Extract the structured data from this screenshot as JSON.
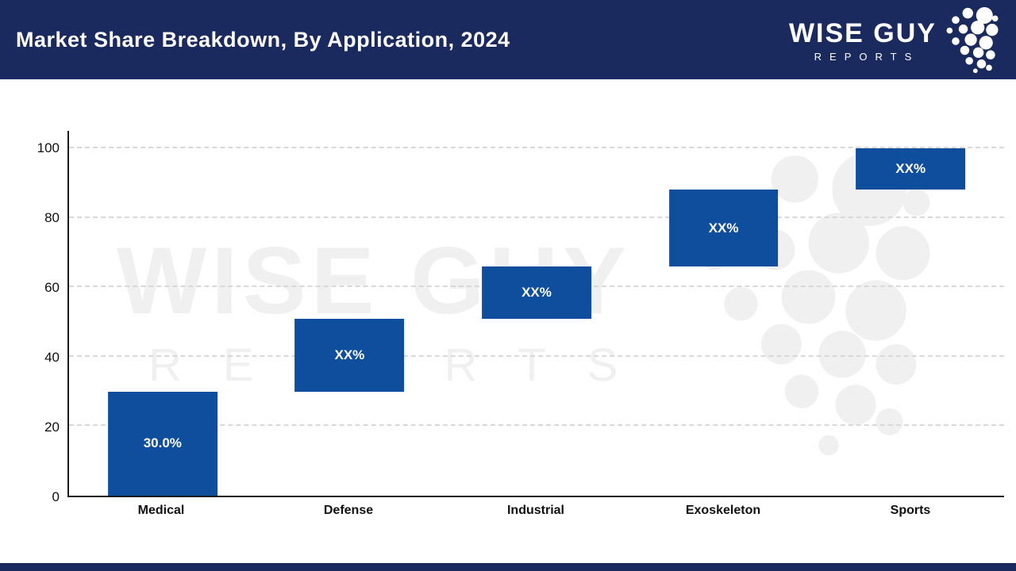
{
  "header": {
    "title": "Market Share Breakdown, By Application, 2024",
    "logo": {
      "line1": "WISE GUY",
      "line2": "REPORTS"
    }
  },
  "watermark": {
    "line1": "WISE GUY",
    "line2": "REPORTS"
  },
  "colors": {
    "header_bg": "#1b2a5e",
    "bar": "#0f4e9d",
    "watermark": "#f0f0f0",
    "gridline": "#d8d8d8"
  },
  "chart_data": {
    "type": "bar",
    "subtype": "waterfall",
    "title": "Market Share Breakdown, By Application, 2024",
    "categories": [
      "Medical",
      "Defense",
      "Industrial",
      "Exoskeleton",
      "Sports"
    ],
    "bars": [
      {
        "category": "Medical",
        "start": 0,
        "end": 30,
        "label": "30.0%"
      },
      {
        "category": "Defense",
        "start": 30,
        "end": 51,
        "label": "XX%"
      },
      {
        "category": "Industrial",
        "start": 51,
        "end": 66,
        "label": "XX%"
      },
      {
        "category": "Exoskeleton",
        "start": 66,
        "end": 88,
        "label": "XX%"
      },
      {
        "category": "Sports",
        "start": 88,
        "end": 100,
        "label": "XX%"
      }
    ],
    "y_ticks": [
      0,
      20,
      40,
      60,
      80,
      100
    ],
    "ylim": [
      0,
      105
    ],
    "xlabel": "",
    "ylabel": "",
    "grid": "horizontal-dashed",
    "legend": "none"
  }
}
